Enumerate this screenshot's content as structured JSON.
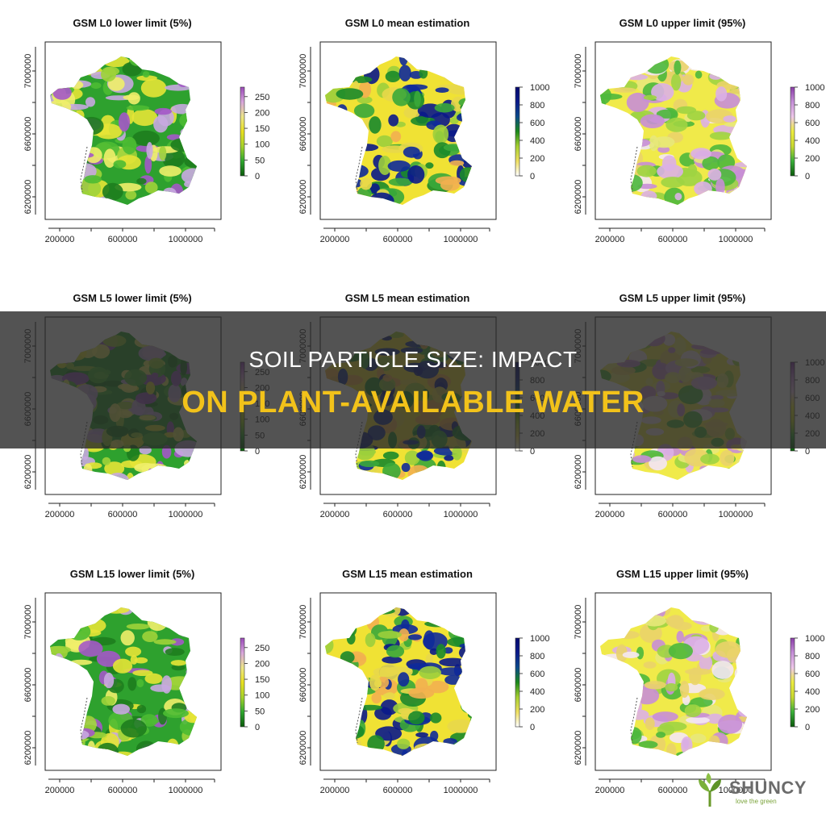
{
  "figure": {
    "panels": [
      {
        "title": "GSM L0 lower limit (5%)",
        "legend": "lower",
        "scheme": "lower"
      },
      {
        "title": "GSM L0 mean estimation",
        "legend": "mean",
        "scheme": "mean"
      },
      {
        "title": "GSM L0 upper limit (95%)",
        "legend": "upper",
        "scheme": "upper"
      },
      {
        "title": "GSM L5 lower limit (5%)",
        "legend": "lower",
        "scheme": "lower"
      },
      {
        "title": "GSM L5 mean estimation",
        "legend": "mean",
        "scheme": "mean"
      },
      {
        "title": "GSM L5 upper limit (95%)",
        "legend": "upper",
        "scheme": "upper"
      },
      {
        "title": "GSM L15 lower limit (5%)",
        "legend": "lower",
        "scheme": "lower"
      },
      {
        "title": "GSM L15 mean estimation",
        "legend": "mean",
        "scheme": "mean"
      },
      {
        "title": "GSM L15 upper limit (95%)",
        "legend": "upper",
        "scheme": "upper"
      }
    ],
    "x_ticks": [
      "200000",
      "600000",
      "1000000"
    ],
    "y_ticks": [
      "6200000",
      "6600000",
      "7000000"
    ],
    "legends": {
      "lower": {
        "ticks": [
          "0",
          "50",
          "100",
          "150",
          "200",
          "250"
        ],
        "max": 280,
        "colors": [
          "#0a5a0a",
          "#2fa82f",
          "#a6d22b",
          "#e8e020",
          "#ece58a",
          "#d8a6dc",
          "#9a49b8"
        ]
      },
      "mean": {
        "ticks": [
          "0",
          "200",
          "400",
          "600",
          "800",
          "1000"
        ],
        "max": 1000,
        "colors": [
          "#ffffff",
          "#f0e060",
          "#a8d030",
          "#1a8a1a",
          "#0a4a8a",
          "#0a1a8a",
          "#050a70"
        ]
      },
      "upper": {
        "ticks": [
          "0",
          "200",
          "400",
          "600",
          "800",
          "1000"
        ],
        "max": 1000,
        "colors": [
          "#0a5a0a",
          "#3ab03a",
          "#c8d830",
          "#ecec40",
          "#eec8ea",
          "#c690d8",
          "#8a3ca8"
        ]
      }
    },
    "schemes": {
      "lower": [
        "#2ea12e",
        "#4dbb33",
        "#9fd33a",
        "#e6e436",
        "#f0ee6a",
        "#c8a8e0",
        "#a458c8",
        "#1e7d1e"
      ],
      "mean": [
        "#f0e234",
        "#e8d84a",
        "#1a8a2a",
        "#0e2a9a",
        "#0a1a8a",
        "#3aa83a",
        "#f2b050",
        "#9ccf3c"
      ],
      "upper": [
        "#f0ea4a",
        "#e8e87a",
        "#dcb0e6",
        "#c88ed6",
        "#f4e7f4",
        "#9ed442",
        "#4cb83c",
        "#ead36a"
      ]
    }
  },
  "overlay": {
    "line1": "SOIL PARTICLE SIZE: IMPACT",
    "line2": "ON PLANT-AVAILABLE WATER"
  },
  "logo": {
    "name": "SHUNCY",
    "tagline": "love the green"
  }
}
